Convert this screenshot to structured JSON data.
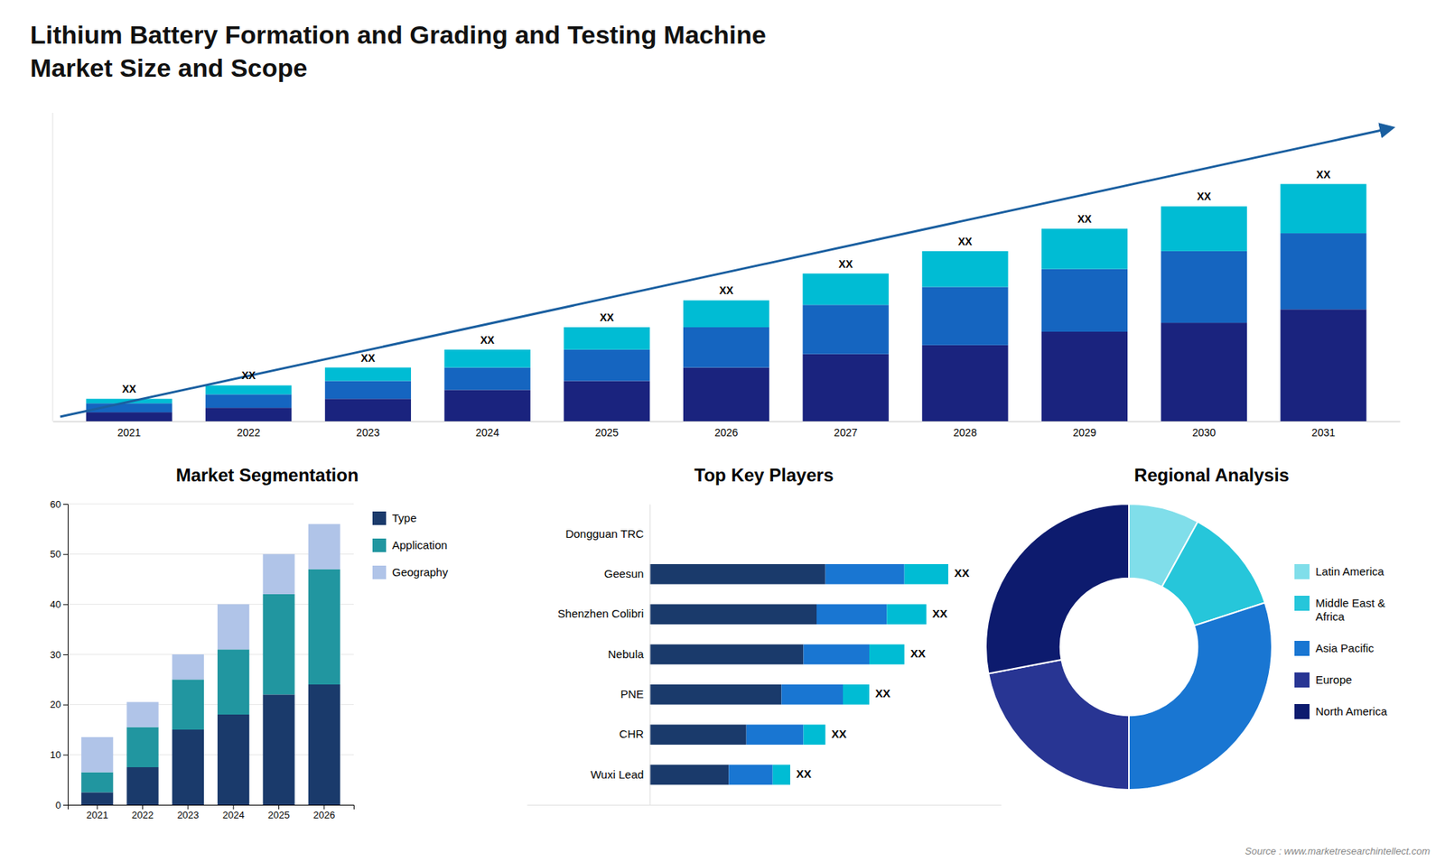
{
  "chart_data": [
    {
      "type": "bar",
      "title": "Lithium Battery Formation and Grading and Testing Machine",
      "subtitle": "Market Size and Scope",
      "categories": [
        "2021",
        "2022",
        "2023",
        "2024",
        "2025",
        "2026",
        "2027",
        "2028",
        "2029",
        "2030",
        "2031"
      ],
      "series": [
        {
          "color": "#1a237e",
          "values": [
            2,
            3,
            5,
            7,
            9,
            12,
            15,
            17,
            20,
            22,
            25
          ]
        },
        {
          "color": "#1565c0",
          "values": [
            2,
            3,
            4,
            5,
            7,
            9,
            11,
            13,
            14,
            16,
            17
          ]
        },
        {
          "color": "#00bcd4",
          "values": [
            1,
            2,
            3,
            4,
            5,
            6,
            7,
            8,
            9,
            10,
            11
          ]
        }
      ],
      "stacked": true,
      "ylim": [
        0,
        68.9
      ],
      "tick_labels": "x",
      "annotations": [
        "XX",
        "XX",
        "XX",
        "XX",
        "XX",
        "XX",
        "XX",
        "XX",
        "XX",
        "XX",
        "XX"
      ]
    },
    {
      "type": "bar",
      "title": "Market Segmentation",
      "categories": [
        "2021",
        "2022",
        "2023",
        "2024",
        "2025",
        "2026"
      ],
      "series": [
        {
          "name": "Type",
          "color": "#1a3a6b",
          "values": [
            2.5,
            7.5,
            15,
            18,
            22,
            24
          ]
        },
        {
          "name": "Application",
          "color": "#2196a0",
          "values": [
            4,
            8,
            10,
            13,
            20,
            23
          ]
        },
        {
          "name": "Geography",
          "color": "#b0c4e8",
          "values": [
            7,
            5,
            5,
            9,
            8,
            9
          ]
        }
      ],
      "stacked": true,
      "ylim": [
        0,
        60
      ],
      "yticks": [
        0,
        10,
        20,
        30,
        40,
        50,
        60
      ],
      "grid": true,
      "legend": "right"
    },
    {
      "type": "bar",
      "title": "Top Key Players",
      "orientation": "horizontal",
      "categories": [
        "Dongguan TRC",
        "Geesun",
        "Shenzhen Colibri",
        "Nebula",
        "PNE",
        "CHR",
        "Wuxi Lead"
      ],
      "series": [
        {
          "color": "#1a3a6b",
          "values": [
            0,
            40,
            38,
            35,
            30,
            22,
            18
          ]
        },
        {
          "color": "#1976d2",
          "values": [
            0,
            18,
            16,
            15,
            14,
            13,
            10
          ]
        },
        {
          "color": "#00bcd4",
          "values": [
            0,
            10,
            9,
            8,
            6,
            5,
            4
          ]
        }
      ],
      "stacked": true,
      "xlim": [
        -28,
        80
      ],
      "tick_labels": "y",
      "annotations": [
        null,
        "XX",
        "XX",
        "XX",
        "XX",
        "XX",
        "XX"
      ]
    },
    {
      "type": "pie",
      "title": "Regional Analysis",
      "labels": [
        "Latin America",
        "Middle East &\nAfrica",
        "Asia Pacific",
        "Europe",
        "North America"
      ],
      "values": [
        8,
        12,
        30,
        22,
        28
      ],
      "colors": [
        "#80deea",
        "#26c6da",
        "#1976d2",
        "#283593",
        "#0d1b6e"
      ],
      "legend": "right",
      "annotations": [
        "Source : www.marketresearchintellect.com"
      ]
    }
  ]
}
